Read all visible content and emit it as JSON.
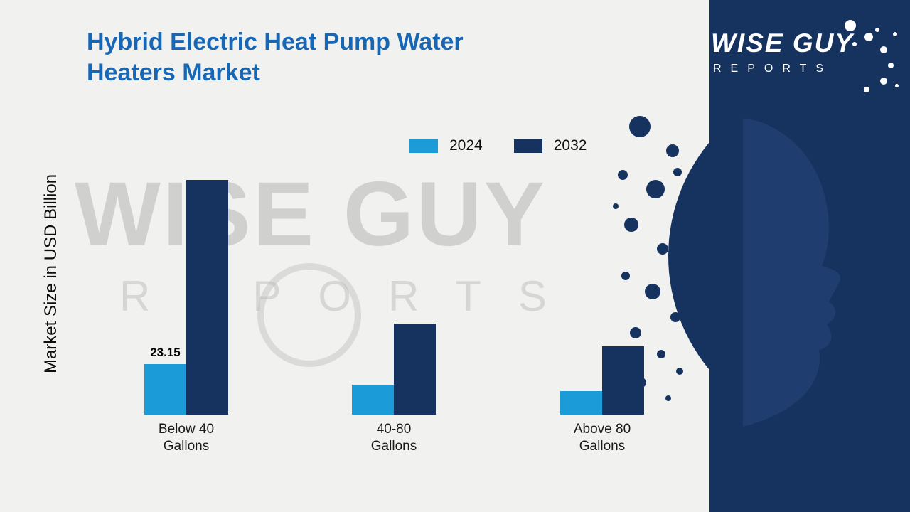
{
  "page_title": "Hybrid Electric Heat Pump Water Heaters Market",
  "logo": {
    "line1": "WISE GUY",
    "line2": "REPORTS"
  },
  "watermark": {
    "line1": "WISE GUY",
    "line2": "REPORTS"
  },
  "legend": [
    {
      "label": "2024",
      "color": "#1b9cd9"
    },
    {
      "label": "2032",
      "color": "#16325f"
    }
  ],
  "chart_data": {
    "type": "bar",
    "title": "Hybrid Electric Heat Pump Water Heaters Market",
    "ylabel": "Market Size in USD Billion",
    "xlabel": "",
    "categories": [
      "Below 40 Gallons",
      "40-80 Gallons",
      "Above 80 Gallons"
    ],
    "series": [
      {
        "name": "2024",
        "color": "#1b9cd9",
        "values": [
          23.15,
          13.7,
          10.8
        ]
      },
      {
        "name": "2032",
        "color": "#16325f",
        "values": [
          107.6,
          41.8,
          31.3
        ]
      }
    ],
    "annotations": [
      {
        "category_index": 0,
        "series_index": 0,
        "text": "23.15"
      }
    ],
    "ylim": [
      0,
      110
    ],
    "grid": false,
    "legend_position": "top"
  },
  "colors": {
    "background": "#f1f1ef",
    "panel_navy": "#16325f",
    "title_blue": "#1767b5",
    "bar_2024": "#1b9cd9",
    "bar_2032": "#16325f",
    "watermark_gray": "#d0d0ce"
  }
}
